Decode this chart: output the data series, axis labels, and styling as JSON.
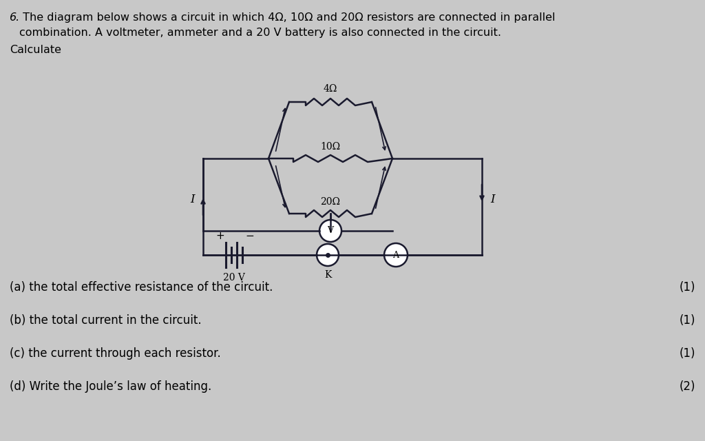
{
  "title_num": "6.",
  "title_line1": " The diagram below shows a circuit in which 4Ω, 10Ω and 20Ω resistors are connected in parallel",
  "title_line2": "combination. A voltmeter, ammeter and a 20 V battery is also connected in the circuit.",
  "subtitle": "Calculate",
  "question_a": "(a) the total effective resistance of the circuit.",
  "question_b": "(b) the total current in the circuit.",
  "question_c": "(c) the current through each resistor.",
  "question_d": "(d) Write the Joule’s law of heating.",
  "marks_a": "(1)",
  "marks_b": "(1)",
  "marks_c": "(1)",
  "marks_d": "(2)",
  "resistor_4": "4Ω",
  "resistor_10": "10Ω",
  "resistor_20": "20Ω",
  "battery_label": "20 V",
  "switch_label": "K",
  "current_label": "I",
  "bg_color": "#c8c8c8",
  "text_color": "#000000",
  "line_color": "#1a1a2e"
}
